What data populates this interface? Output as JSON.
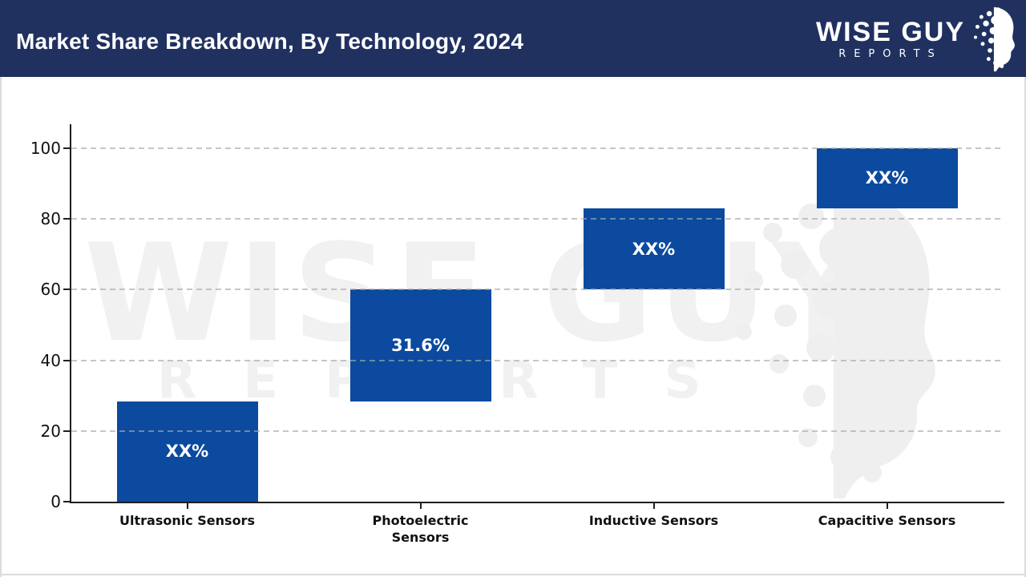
{
  "header": {
    "title": "Market Share Breakdown, By Technology, 2024",
    "logo": {
      "line1": "WISE GUY",
      "line2": "REPORTS",
      "icon": "dotted-head-profile-icon"
    }
  },
  "watermark": {
    "line1": "WISE GUY",
    "line2": "REPORTS",
    "icon": "dotted-head-profile-watermark"
  },
  "chart_data": {
    "type": "bar",
    "subtype": "floating-waterfall",
    "title": "Market Share Breakdown, By Technology, 2024",
    "categories": [
      "Ultrasonic Sensors",
      "Photoelectric\nSensors",
      "Inductive Sensors",
      "Capacitive Sensors"
    ],
    "series": [
      {
        "name": "Market Share",
        "segments": [
          {
            "category": "Ultrasonic Sensors",
            "start": 0,
            "end": 28.4,
            "size": 28.4,
            "label": "XX%"
          },
          {
            "category": "Photoelectric Sensors",
            "start": 28.4,
            "end": 60.0,
            "size": 31.6,
            "label": "31.6%"
          },
          {
            "category": "Inductive Sensors",
            "start": 60.0,
            "end": 83.0,
            "size": 23.0,
            "label": "XX%"
          },
          {
            "category": "Capacitive Sensors",
            "start": 83.0,
            "end": 100.0,
            "size": 17.0,
            "label": "XX%"
          }
        ]
      }
    ],
    "ylim": [
      0,
      100
    ],
    "yticks": [
      0,
      20,
      40,
      60,
      80,
      100
    ],
    "grid": "horizontal-dashed",
    "legend": false,
    "bar_color": "#0b4a9e"
  },
  "colors": {
    "header_bg": "#203160",
    "bar": "#0b4a9e",
    "axis": "#1f1f1f",
    "gridline": "#bdbdbd",
    "watermark": "#f1f1f1",
    "edge": "#dcdcdc"
  }
}
